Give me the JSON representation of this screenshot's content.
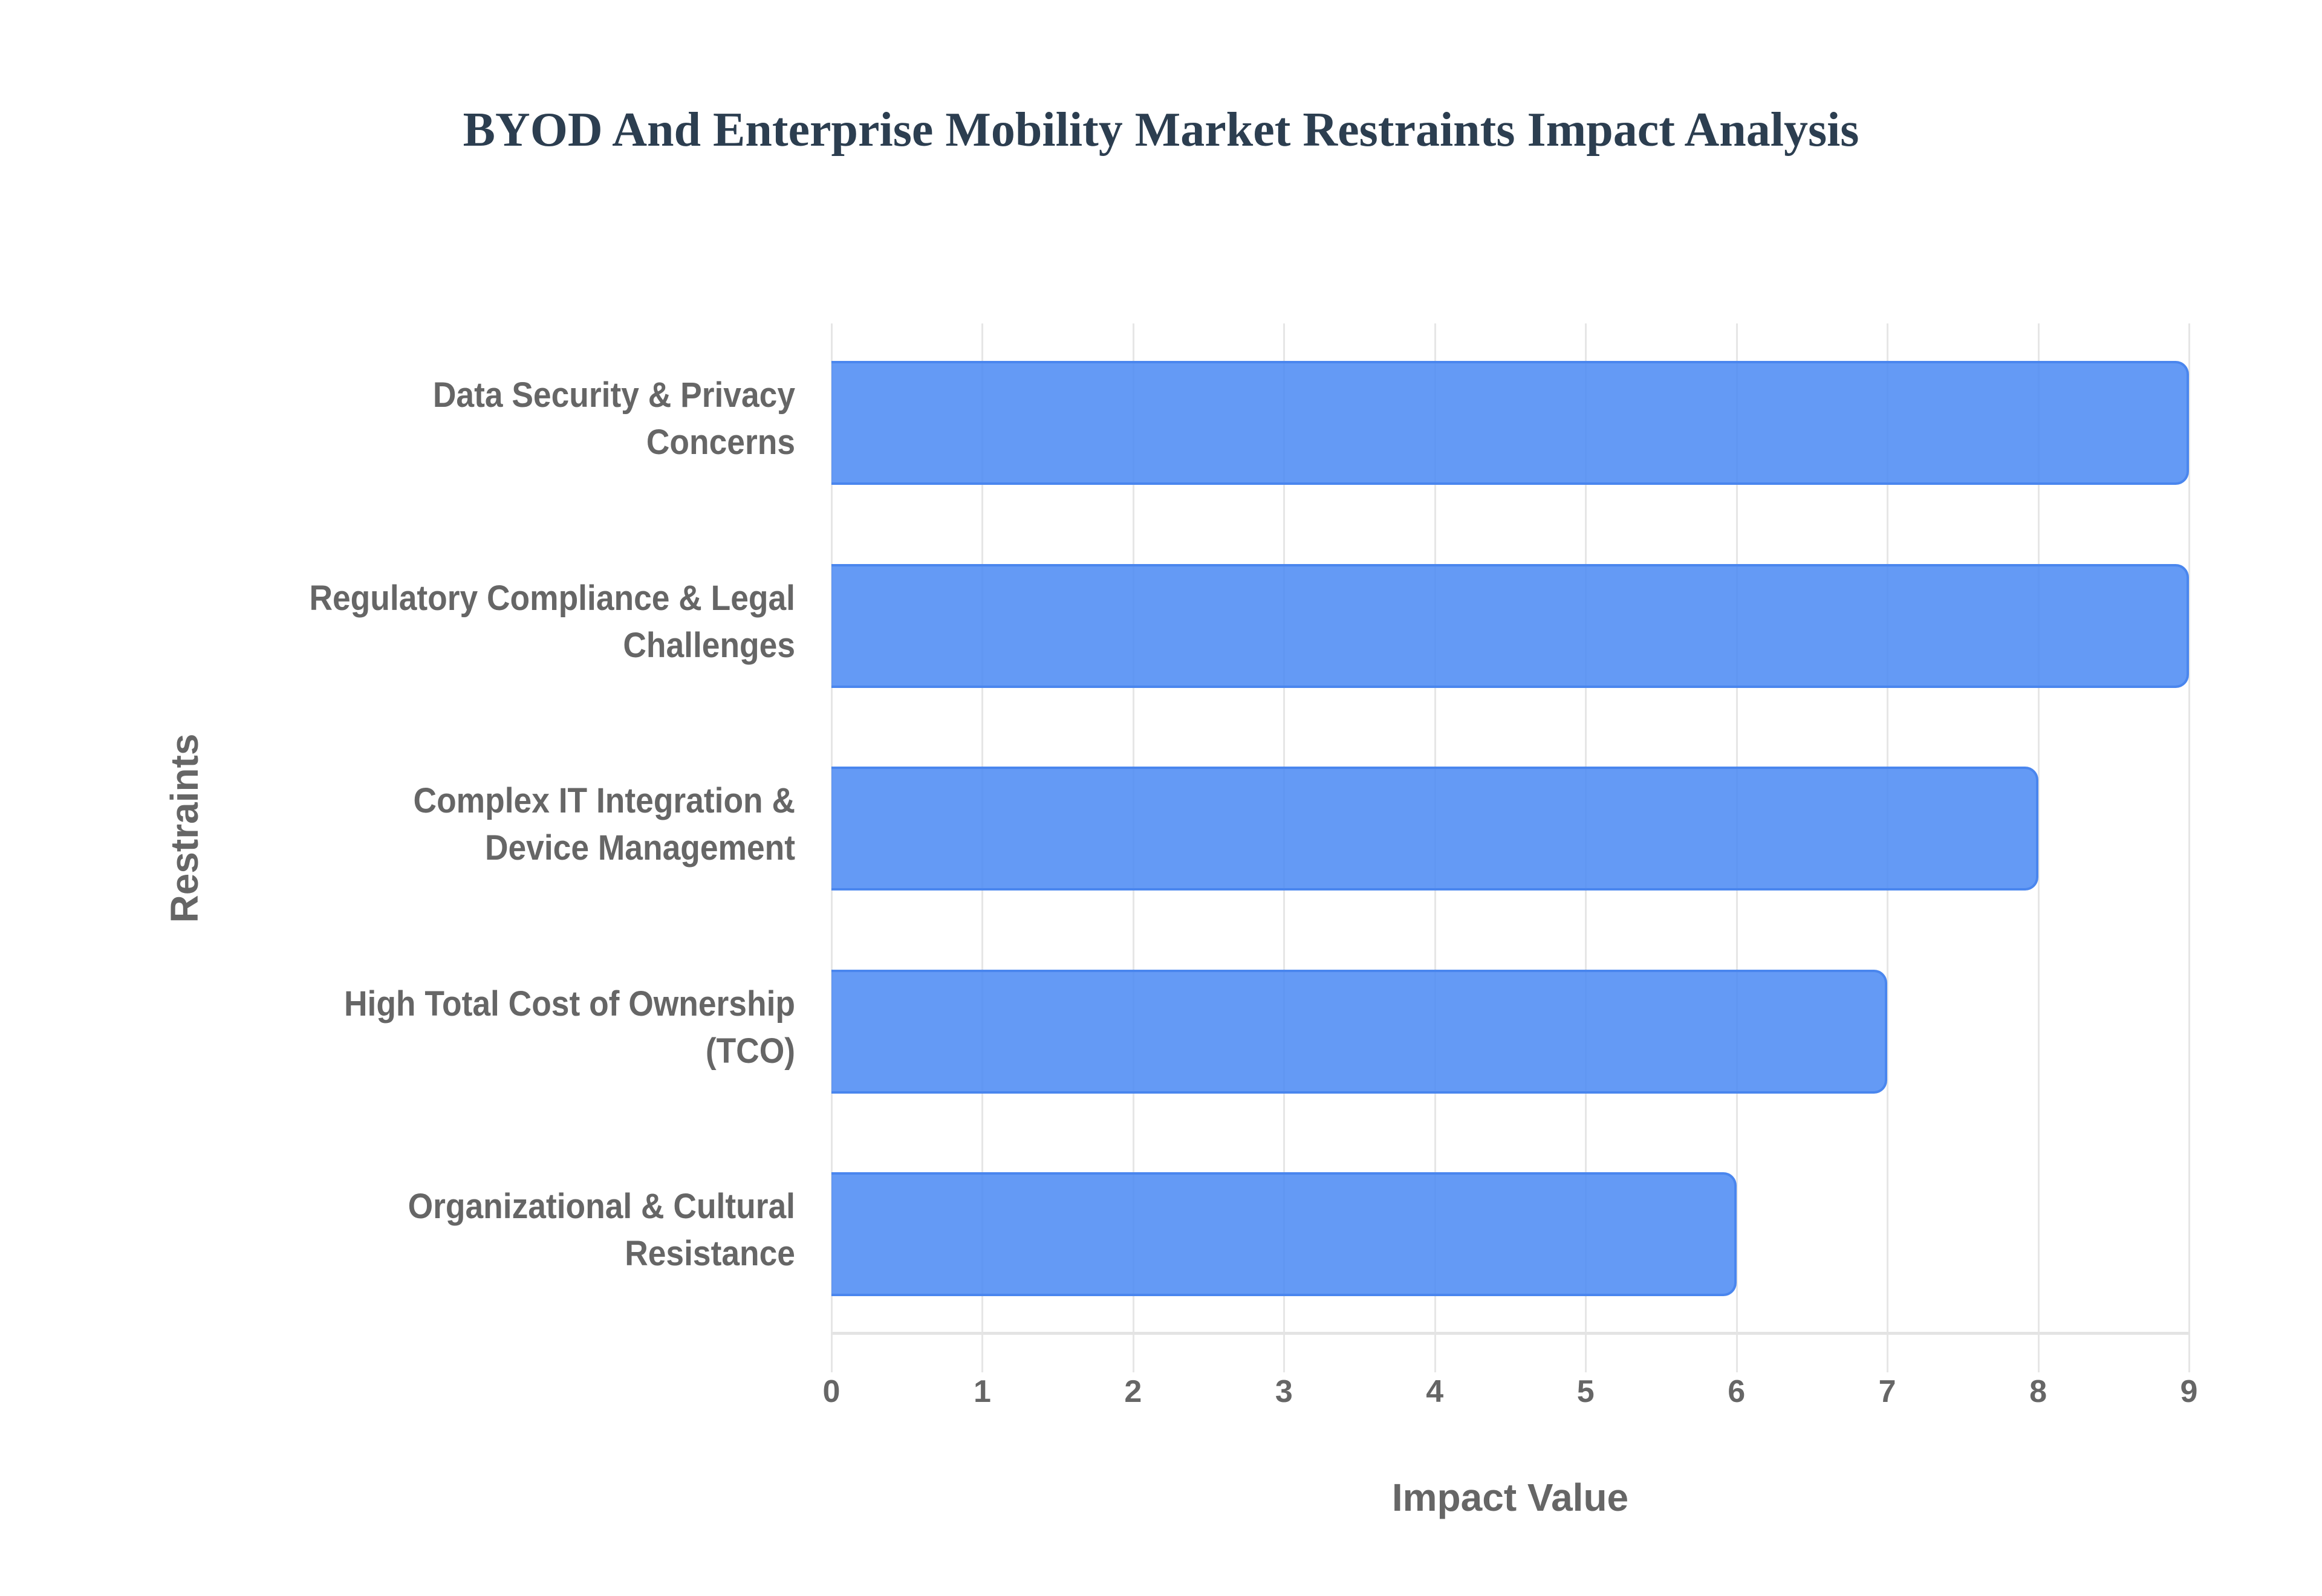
{
  "title": "BYOD And Enterprise Mobility Market Restraints Impact Analysis",
  "x_axis": {
    "label": "Impact Value",
    "ticks": [
      "0",
      "1",
      "2",
      "3",
      "4",
      "5",
      "6",
      "7",
      "8",
      "9"
    ]
  },
  "y_axis": {
    "label": "Restraints"
  },
  "colors": {
    "bar_fill": "#5e9af5",
    "bar_border": "#4a86ee",
    "title": "#2c3e50",
    "axis_text": "#666666",
    "grid": "#e6e6e6"
  },
  "categories": [
    {
      "line1": "Data Security & Privacy",
      "line2": "Concerns"
    },
    {
      "line1": "Regulatory Compliance & Legal",
      "line2": "Challenges"
    },
    {
      "line1": "Complex IT Integration &",
      "line2": "Device Management"
    },
    {
      "line1": "High Total Cost of Ownership",
      "line2": "(TCO)"
    },
    {
      "line1": "Organizational & Cultural",
      "line2": "Resistance"
    }
  ],
  "chart_data": {
    "type": "bar",
    "orientation": "horizontal",
    "title": "BYOD And Enterprise Mobility Market Restraints Impact Analysis",
    "categories": [
      "Data Security & Privacy Concerns",
      "Regulatory Compliance & Legal Challenges",
      "Complex IT Integration & Device Management",
      "High Total Cost of Ownership (TCO)",
      "Organizational & Cultural Resistance"
    ],
    "values": [
      9,
      9,
      8,
      7,
      6
    ],
    "xlabel": "Impact Value",
    "ylabel": "Restraints",
    "xlim": [
      0,
      9
    ],
    "xticks": [
      0,
      1,
      2,
      3,
      4,
      5,
      6,
      7,
      8,
      9
    ],
    "grid": true,
    "legend": null
  }
}
